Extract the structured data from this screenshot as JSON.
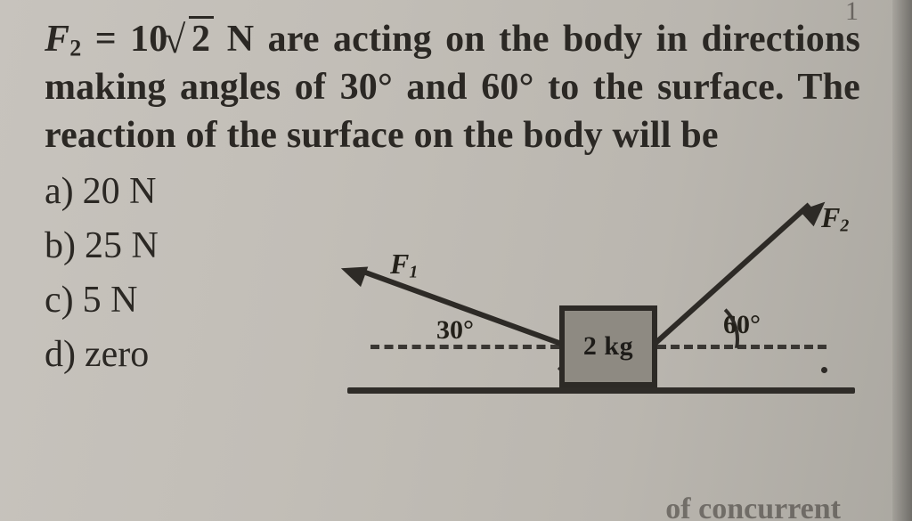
{
  "top_fragment": "1",
  "stem": {
    "p1a": "F",
    "p1sub": "2",
    "p1b": " = 10",
    "p1rad": "2",
    "p1c": " N  are acting on the body in directions making angles of 30° and 60° to the surface. The reaction of the surface on the body will be"
  },
  "options": {
    "a": {
      "label": "a)",
      "text": "20 N"
    },
    "b": {
      "label": "b)",
      "text": "25 N"
    },
    "c": {
      "label": "c)",
      "text": "5 N"
    },
    "d": {
      "label": "d)",
      "text": "zero"
    }
  },
  "diagram": {
    "mass": "2 kg",
    "angle_left": "30°",
    "angle_right": "60°",
    "f1_label_a": "F",
    "f1_label_sub": "1",
    "f2_label_a": "F",
    "f2_label_sub": "2",
    "colors": {
      "line": "#2d2a26",
      "box_fill": "#8e8a82",
      "text": "#232019"
    }
  },
  "bottom_fragment": "of concurrent"
}
